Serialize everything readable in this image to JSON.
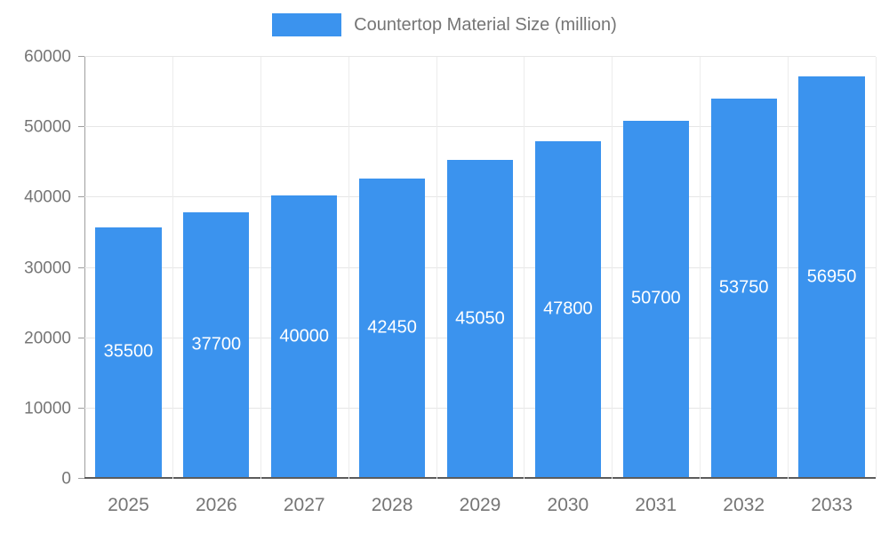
{
  "colors": {
    "bar": "#3b93ee",
    "value_label": "#ffffff",
    "axis_text": "#757575",
    "gridline": "#e6e6e6"
  },
  "chart_data": {
    "type": "bar",
    "title": "Countertop Material Size (million)",
    "categories": [
      "2025",
      "2026",
      "2027",
      "2028",
      "2029",
      "2030",
      "2031",
      "2032",
      "2033"
    ],
    "values": [
      35500,
      37700,
      40000,
      42450,
      45050,
      47800,
      50700,
      53750,
      56950
    ],
    "xlabel": "",
    "ylabel": "",
    "ylim": [
      0,
      60000
    ],
    "yticks": [
      0,
      10000,
      20000,
      30000,
      40000,
      50000,
      60000
    ],
    "grid": true,
    "legend_position": "top",
    "value_labels": "inside-center"
  }
}
